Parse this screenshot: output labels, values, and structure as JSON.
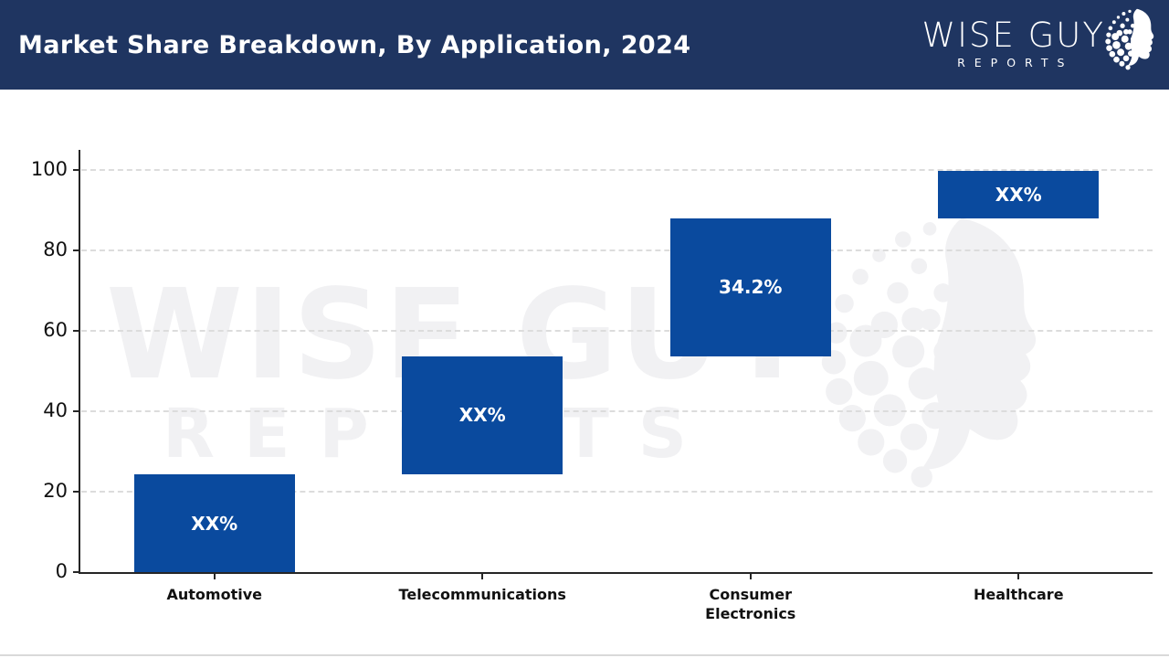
{
  "header": {
    "title": "Market Share Breakdown, By Application, 2024",
    "bg_color": "#1f3561",
    "logo": {
      "line1": "WISE GUY",
      "line2": "REPORTS"
    }
  },
  "watermark": {
    "line1": "WISE GUY",
    "line2": "REPORTS"
  },
  "chart_data": {
    "type": "bar",
    "variant": "stacked-waterfall",
    "title": "Market Share Breakdown, By Application, 2024",
    "categories": [
      "Automotive",
      "Telecommunications",
      "Consumer Electronics",
      "Healthcare"
    ],
    "x_display_labels": [
      "Automotive",
      "Telecommunications",
      "Consumer\nElectronics",
      "Healthcare"
    ],
    "segments": [
      {
        "category": "Automotive",
        "start": 0,
        "end": 24.3,
        "label": "XX%"
      },
      {
        "category": "Telecommunications",
        "start": 24.3,
        "end": 53.7,
        "label": "XX%"
      },
      {
        "category": "Consumer Electronics",
        "start": 53.7,
        "end": 87.9,
        "label": "34.2%"
      },
      {
        "category": "Healthcare",
        "start": 87.9,
        "end": 99.8,
        "label": "XX%"
      }
    ],
    "y_ticks": [
      0,
      20,
      40,
      60,
      80,
      100
    ],
    "ylim": [
      0,
      105
    ],
    "xlabel": "",
    "ylabel": "",
    "grid": "horizontal-dashed",
    "legend": "none",
    "bar_color": "#0a4a9e",
    "axis_color": "#262626",
    "gridline_color": "#dcdcdc"
  }
}
